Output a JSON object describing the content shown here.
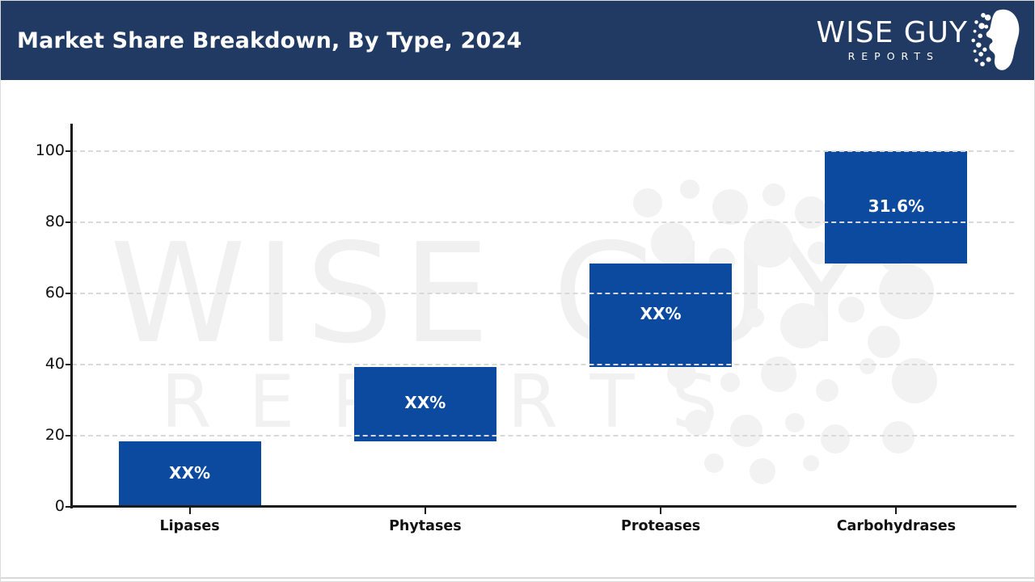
{
  "header": {
    "title": "Market Share Breakdown, By Type, 2024",
    "bg_color": "#213a64",
    "text_color": "#ffffff",
    "logo": {
      "line1": "WISE GUY",
      "line2": "REPORTS"
    }
  },
  "watermark": {
    "line1": "WISE GUY",
    "line2": "REPORTS"
  },
  "chart_data": {
    "type": "bar",
    "subtype": "waterfall",
    "title": "Market Share Breakdown, By Type, 2024",
    "xlabel": "",
    "ylabel": "",
    "categories": [
      "Lipases",
      "Phytases",
      "Proteases",
      "Carbohydrases"
    ],
    "segments": [
      {
        "category": "Lipases",
        "start": 0,
        "end": 18.4,
        "value_label": "XX%"
      },
      {
        "category": "Phytases",
        "start": 18.4,
        "end": 39.3,
        "value_label": "XX%"
      },
      {
        "category": "Proteases",
        "start": 39.3,
        "end": 68.4,
        "value_label": "XX%"
      },
      {
        "category": "Carbohydrases",
        "start": 68.4,
        "end": 100,
        "value_label": "31.6%"
      }
    ],
    "y_ticks": [
      0,
      20,
      40,
      60,
      80,
      100
    ],
    "ylim": [
      0,
      107
    ],
    "grid": true,
    "grid_style": "dashed",
    "legend": "none",
    "bar_color": "#0c4aa0",
    "bar_label_color": "#ffffff",
    "axis_color": "#1a1a1a"
  }
}
